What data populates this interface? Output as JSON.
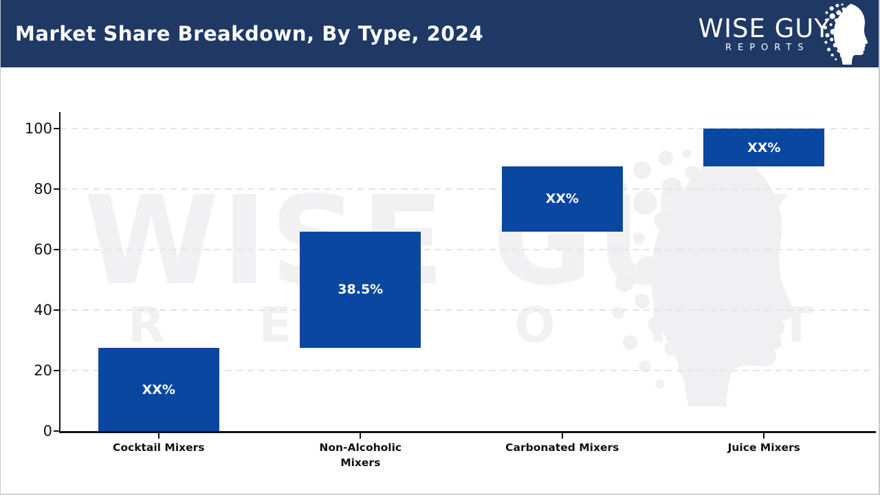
{
  "header": {
    "title": "Market Share Breakdown, By Type, 2024",
    "brand": {
      "line1": "WISE GUY",
      "line2": "REPORTS"
    }
  },
  "watermark": {
    "line1": "WISE GUY",
    "line2": "R E P O R T S"
  },
  "colors": {
    "header_bg": "#1f3864",
    "bar": "#0a47a0",
    "axis": "#111111",
    "grid": "#e4e4e6",
    "watermark": "#f1f1f4",
    "bar_label": "#ffffff",
    "title_text": "#ffffff"
  },
  "chart_data": {
    "type": "bar",
    "subtype": "waterfall",
    "title": "Market Share Breakdown, By Type, 2024",
    "xlabel": "",
    "ylabel": "",
    "ylim": [
      0,
      105
    ],
    "yticks": [
      0,
      20,
      40,
      60,
      80,
      100
    ],
    "grid": "horizontal-dashed",
    "legend": "none",
    "categories": [
      "Cocktail Mixers",
      "Non-Alcoholic\nMixers",
      "Carbonated Mixers",
      "Juice Mixers"
    ],
    "segments": [
      {
        "category": "Cocktail Mixers",
        "start": 0,
        "end": 27.5,
        "value": 27.5,
        "label": "XX%"
      },
      {
        "category": "Non-Alcoholic Mixers",
        "start": 27.5,
        "end": 66,
        "value": 38.5,
        "label": "38.5%"
      },
      {
        "category": "Carbonated Mixers",
        "start": 66,
        "end": 87.5,
        "value": 21.5,
        "label": "XX%"
      },
      {
        "category": "Juice Mixers",
        "start": 87.5,
        "end": 100,
        "value": 12.5,
        "label": "XX%"
      }
    ]
  }
}
